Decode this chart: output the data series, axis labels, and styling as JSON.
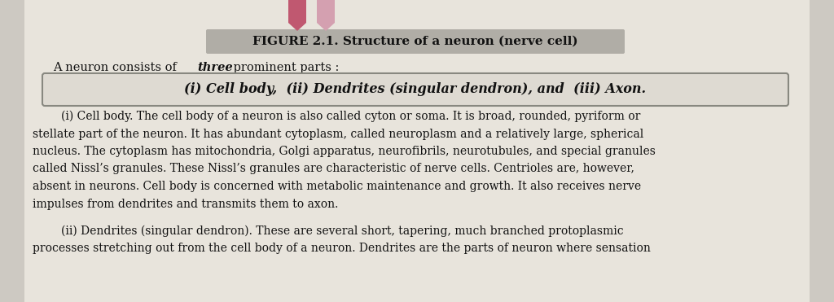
{
  "bg_color": "#cdc9c2",
  "page_bg": "#e8e4dc",
  "figure_title": "FIGURE 2.1. Structure of a neuron (nerve cell)",
  "figure_title_bg": "#b0ada6",
  "intro_line": "A neuron consists of three prominent parts :",
  "box_text": "(i) Cell body,  (ii) Dendrites (singular dendron), and  (iii) Axon.",
  "box_bg": "#dedad2",
  "box_edge": "#888880",
  "para1_lines": [
    "        (i) Cell body. The cell body of a neuron is also called cyton or soma. It is broad, rounded, pyriform or",
    "stellate part of the neuron. It has abundant cytoplasm, called neuroplasm and a relatively large, spherical",
    "nucleus. The cytoplasm has mitochondria, Golgi apparatus, neurofibrils, neurotubules, and special granules",
    "called Nissl’s granules. These Nissl’s granules are characteristic of nerve cells. Centrioles are, however,",
    "absent in neurons. Cell body is concerned with metabolic maintenance and growth. It also receives nerve",
    "impulses from dendrites and transmits them to axon."
  ],
  "para2_lines": [
    "        (ii) Dendrites (singular dendron). These are several short, tapering, much branched protoplasmic",
    "processes stretching out from the cell body of a neuron. Dendrites are the parts of neuron where sensation"
  ],
  "text_color": "#111111",
  "bookmark_left_color": "#c05870",
  "bookmark_right_color": "#d4a0b0",
  "figsize": [
    10.24,
    3.71
  ],
  "dpi": 100
}
